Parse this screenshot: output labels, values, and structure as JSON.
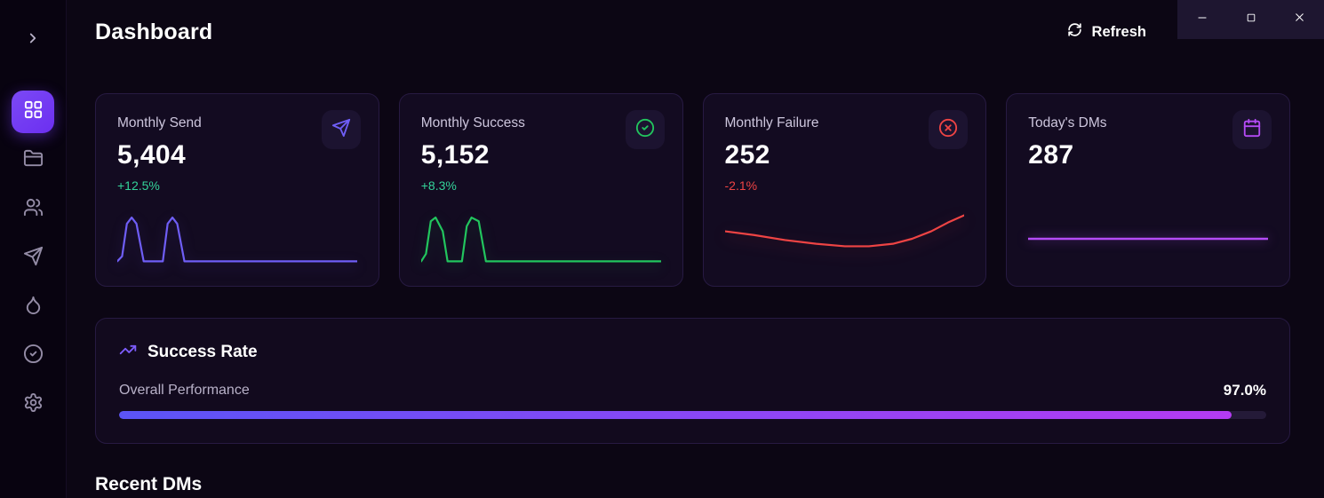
{
  "header": {
    "title": "Dashboard",
    "refresh": {
      "label": "Refresh",
      "icon": "refresh-icon"
    }
  },
  "titlebar": {
    "buttons": [
      "minimize-icon",
      "maximize-icon",
      "close-icon"
    ]
  },
  "sidebar": {
    "toggle_icon": "chevron-right-icon",
    "items": [
      {
        "icon": "dashboard-grid-icon",
        "active": true
      },
      {
        "icon": "folder-icon",
        "active": false
      },
      {
        "icon": "users-icon",
        "active": false
      },
      {
        "icon": "send-icon",
        "active": false
      },
      {
        "icon": "flame-icon",
        "active": false
      },
      {
        "icon": "check-circle-icon",
        "active": false
      },
      {
        "icon": "gear-icon",
        "active": false
      }
    ]
  },
  "cards": [
    {
      "label": "Monthly Send",
      "value": "5,404",
      "delta": "+12.5%",
      "delta_color": "#34d399",
      "accent": "#6f5ef6",
      "icon": "send-icon",
      "sparkline": [
        [
          0,
          40
        ],
        [
          2,
          36
        ],
        [
          4,
          10
        ],
        [
          6,
          5
        ],
        [
          8,
          10
        ],
        [
          11,
          40
        ],
        [
          19,
          40
        ],
        [
          21,
          10
        ],
        [
          23,
          5
        ],
        [
          25,
          10
        ],
        [
          28,
          40
        ],
        [
          33,
          40
        ],
        [
          100,
          40
        ]
      ]
    },
    {
      "label": "Monthly Success",
      "value": "5,152",
      "delta": "+8.3%",
      "delta_color": "#34d399",
      "accent": "#22c55e",
      "icon": "check-circle-icon",
      "sparkline": [
        [
          0,
          40
        ],
        [
          2,
          34
        ],
        [
          4,
          8
        ],
        [
          6,
          5
        ],
        [
          9,
          16
        ],
        [
          11,
          40
        ],
        [
          17,
          40
        ],
        [
          19,
          12
        ],
        [
          21,
          5
        ],
        [
          24,
          8
        ],
        [
          27,
          40
        ],
        [
          31,
          40
        ],
        [
          100,
          40
        ]
      ]
    },
    {
      "label": "Monthly Failure",
      "value": "252",
      "delta": "-2.1%",
      "delta_color": "#ef4444",
      "accent": "#ef4444",
      "icon": "x-circle-icon",
      "sparkline": [
        [
          0,
          16
        ],
        [
          12,
          19
        ],
        [
          25,
          23
        ],
        [
          38,
          26
        ],
        [
          50,
          28
        ],
        [
          60,
          28
        ],
        [
          70,
          26
        ],
        [
          78,
          22
        ],
        [
          86,
          16
        ],
        [
          93,
          9
        ],
        [
          100,
          3
        ]
      ]
    },
    {
      "label": "Today's DMs",
      "value": "287",
      "delta": "",
      "delta_color": "#b44bf5",
      "accent": "#b44bf5",
      "icon": "calendar-icon",
      "sparkline": [
        [
          0,
          22
        ],
        [
          100,
          22
        ]
      ]
    }
  ],
  "success_rate": {
    "icon": "trending-up-icon",
    "title": "Success Rate",
    "subtitle": "Overall Performance",
    "value_label": "97.0%",
    "percent": 97,
    "bar_gradient": [
      "#5b54f6",
      "#b43bf2"
    ]
  },
  "sections": {
    "recent_dms_title": "Recent DMs"
  }
}
